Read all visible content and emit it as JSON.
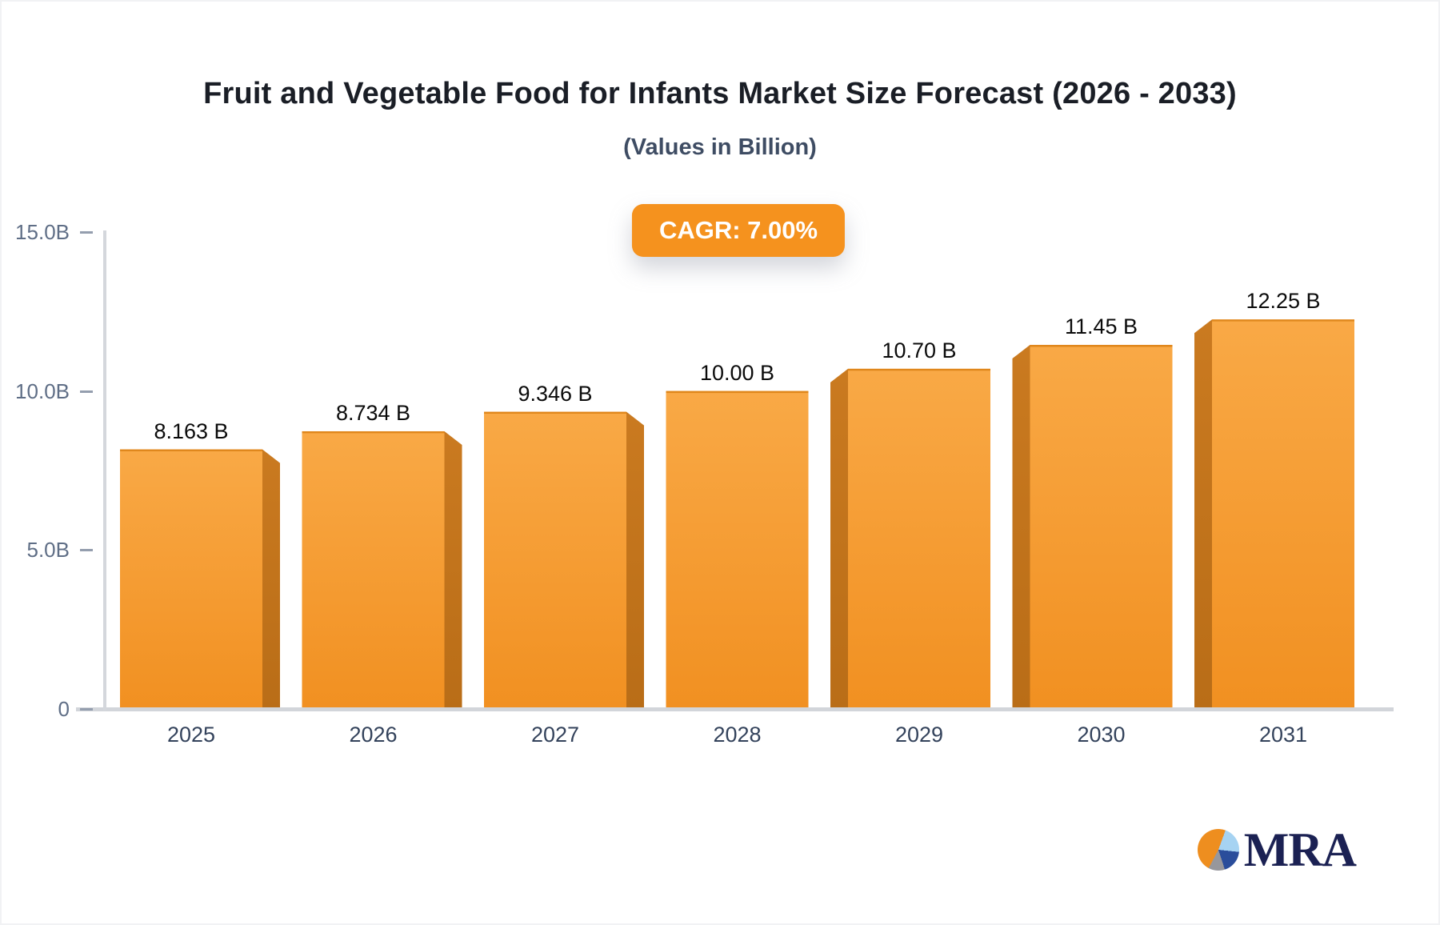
{
  "header": {
    "title": "Fruit and Vegetable Food for Infants Market Size Forecast (2026 - 2033)",
    "subtitle": "(Values in Billion)",
    "cagr_badge": "CAGR: 7.00%"
  },
  "chart_data": {
    "type": "bar",
    "title": "Fruit and Vegetable Food for Infants Market Size Forecast (2026 - 2033)",
    "subtitle": "(Values in Billion)",
    "cagr": "7.00%",
    "categories": [
      "2025",
      "2026",
      "2027",
      "2028",
      "2029",
      "2030",
      "2031"
    ],
    "values": [
      8.163,
      8.734,
      9.346,
      10.0,
      10.7,
      11.45,
      12.25
    ],
    "value_labels": [
      "8.163 B",
      "8.734 B",
      "9.346 B",
      "10.00 B",
      "10.70 B",
      "11.45 B",
      "12.25 B"
    ],
    "xlabel": "",
    "ylabel": "",
    "ylim": [
      0,
      15
    ],
    "yticks": [
      {
        "value": 15,
        "label": "15.0B"
      },
      {
        "value": 10,
        "label": "10.0B"
      },
      {
        "value": 5,
        "label": "5.0B"
      },
      {
        "value": 0,
        "label": "0"
      }
    ],
    "grid": false,
    "legend": false,
    "colors": {
      "bar_front_top": "#f9a946",
      "bar_front_bottom": "#f19021",
      "bar_side_top": "#ca7a20",
      "bar_side_bottom": "#b96d17",
      "bar_top_stroke": "#e0871c",
      "badge_bg": "#f5921e"
    }
  },
  "logo": {
    "text": "MRA",
    "icon": "pie-chart-icon"
  }
}
